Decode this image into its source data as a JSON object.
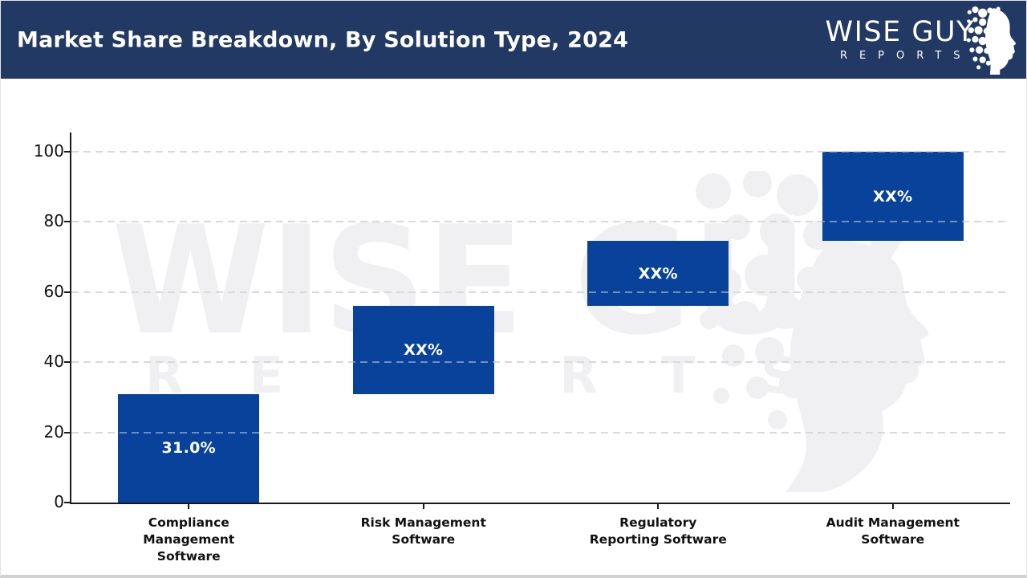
{
  "header": {
    "title": "Market Share Breakdown, By Solution Type, 2024",
    "logo": {
      "brand_top": "WISE GUY",
      "brand_bottom": "REPORTS"
    }
  },
  "watermark": {
    "line1": "WISE GUY",
    "line2": "REPORTS"
  },
  "chart_data": {
    "type": "bar",
    "subtype": "waterfall-floating-bars",
    "title": "Market Share Breakdown, By Solution Type, 2024",
    "categories": [
      "Compliance Management Software",
      "Risk Management Software",
      "Regulatory Reporting Software",
      "Audit Management Software"
    ],
    "category_label_lines": [
      [
        "Compliance",
        "Management",
        "Software"
      ],
      [
        "Risk Management",
        "Software"
      ],
      [
        "Regulatory",
        "Reporting Software"
      ],
      [
        "Audit Management",
        "Software"
      ]
    ],
    "series": [
      {
        "name": "Market share (%)",
        "bars": [
          {
            "category": "Compliance Management Software",
            "start": 0,
            "end": 31,
            "label": "31.0%"
          },
          {
            "category": "Risk Management Software",
            "start": 31,
            "end": 56,
            "label": "XX%"
          },
          {
            "category": "Regulatory Reporting Software",
            "start": 56,
            "end": 74.5,
            "label": "XX%"
          },
          {
            "category": "Audit Management Software",
            "start": 74.5,
            "end": 100,
            "label": "XX%"
          }
        ]
      }
    ],
    "xlabel": "",
    "ylabel": "",
    "yticks": [
      0,
      20,
      40,
      60,
      80,
      100
    ],
    "ylim": [
      0,
      105.5
    ],
    "grid": {
      "axis": "y",
      "style": "dashed"
    },
    "legend": "none"
  },
  "colors": {
    "header_bg": "#223963",
    "bar": "#09429b",
    "bar_label": "#ffffff",
    "grid": "#d9d9d9",
    "axis": "#1a1a1a",
    "tick_label": "#111111",
    "watermark": "#f0f0f3"
  }
}
